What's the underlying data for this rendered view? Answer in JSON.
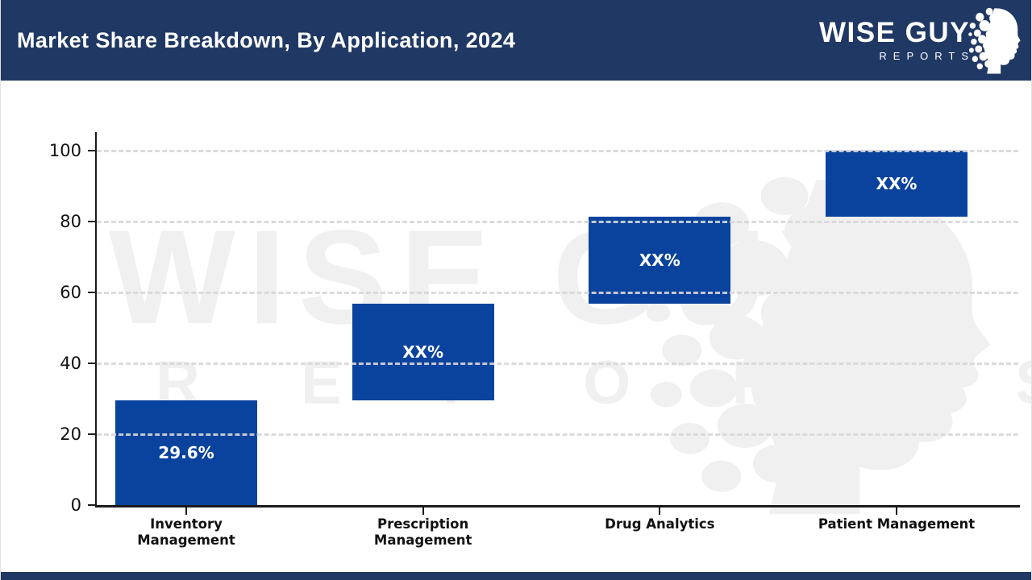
{
  "header": {
    "title": "Market Share Breakdown, By Application, 2024",
    "logo": {
      "name": "WISE GUY",
      "sub": "REPORTS"
    }
  },
  "watermark": {
    "line1": "WISE GUY",
    "line2": "R E P O R T S"
  },
  "chart_data": {
    "type": "bar",
    "subtype": "waterfall",
    "title": "Market Share Breakdown, By Application, 2024",
    "categories": [
      "Inventory Management",
      "Prescription Management",
      "Drug Analytics",
      "Patient Management"
    ],
    "category_lines": [
      [
        "Inventory",
        "Management"
      ],
      [
        "Prescription",
        "Management"
      ],
      [
        "Drug Analytics"
      ],
      [
        "Patient Management"
      ]
    ],
    "segments": [
      {
        "category": "Inventory Management",
        "start": 0,
        "end": 29.6,
        "label": "29.6%"
      },
      {
        "category": "Prescription Management",
        "start": 29.6,
        "end": 56.9,
        "label": "XX%"
      },
      {
        "category": "Drug Analytics",
        "start": 56.9,
        "end": 81.4,
        "label": "XX%"
      },
      {
        "category": "Patient Management",
        "start": 81.4,
        "end": 100,
        "label": "XX%"
      }
    ],
    "yticks": [
      0,
      20,
      40,
      60,
      80,
      100
    ],
    "ylim": [
      0,
      105
    ],
    "xlabel": "",
    "ylabel": "",
    "grid": "horizontal-dashed",
    "legend": "none",
    "colors": {
      "bar": "#0a439e",
      "bar_label": "#ffffff",
      "grid": "#d7d7d7",
      "axis": "#1a1a1a",
      "tick_label": "#111111"
    }
  },
  "colors": {
    "header_bg": "#203864",
    "footer_bg": "#203864",
    "page_bg": "#ffffff",
    "watermark": "#f0f0f0"
  }
}
